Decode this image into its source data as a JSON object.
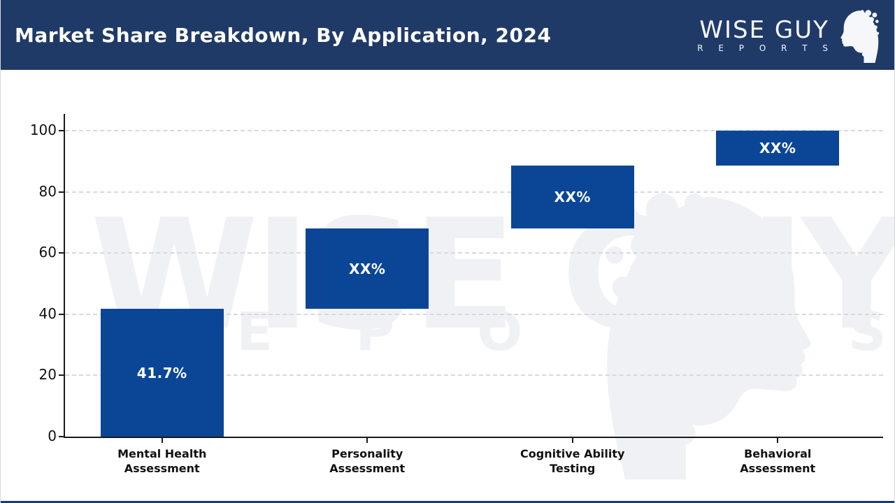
{
  "header": {
    "title": "Market Share Breakdown, By Application, 2024",
    "logo": {
      "line1": "WISE GUY",
      "line2": "R E P O R T S"
    }
  },
  "watermark": {
    "line1": "WISE GUY",
    "line2": "R E P O R T S"
  },
  "colors": {
    "header_bg": "#203a68",
    "bar": "#0b4696",
    "grid": "#d9d9d9",
    "axis": "#1a1a1a",
    "watermark": "#f0f1f4",
    "bar_label": "#ffffff"
  },
  "chart_data": {
    "type": "bar",
    "subtype": "waterfall",
    "title": "Market Share Breakdown, By Application, 2024",
    "categories": [
      "Mental Health\nAssessment",
      "Personality\nAssessment",
      "Cognitive Ability\nTesting",
      "Behavioral\nAssessment"
    ],
    "bars": [
      {
        "category": "Mental Health Assessment",
        "start": 0,
        "end": 41.7,
        "label": "41.7%"
      },
      {
        "category": "Personality Assessment",
        "start": 41.7,
        "end": 68,
        "label": "XX%"
      },
      {
        "category": "Cognitive Ability Testing",
        "start": 68,
        "end": 88.6,
        "label": "XX%"
      },
      {
        "category": "Behavioral Assessment",
        "start": 88.6,
        "end": 100,
        "label": "XX%"
      }
    ],
    "y_ticks": [
      0,
      20,
      40,
      60,
      80,
      100
    ],
    "ylim": [
      0,
      100
    ],
    "xlabel": "",
    "ylabel": "",
    "grid": "horizontal-dashed",
    "legend": "none"
  }
}
